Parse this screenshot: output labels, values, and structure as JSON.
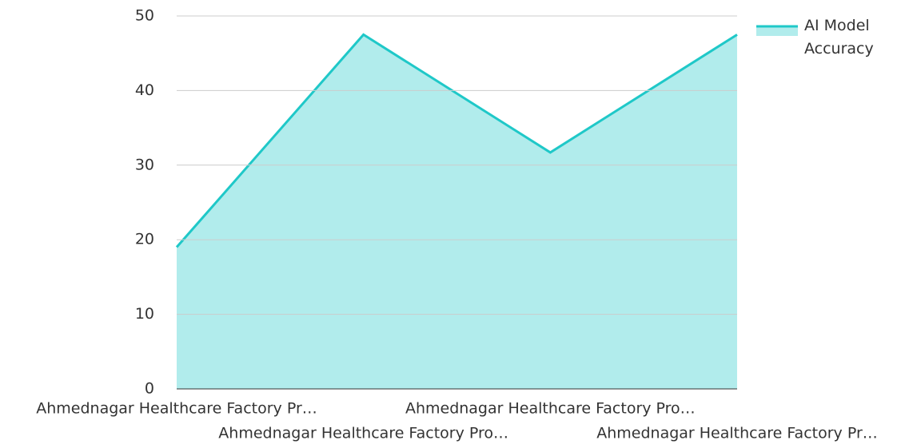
{
  "chart_data": {
    "type": "area",
    "categories": [
      "Ahmednagar Healthcare Factory Pr…",
      "Ahmednagar Healthcare Factory Pro…",
      "Ahmednagar Healthcare Factory Pro…",
      "Ahmednagar Healthcare Factory Pr…"
    ],
    "series": [
      {
        "name": "AI Model Accuracy",
        "color": "#1fc8c8",
        "values": [
          19,
          47.5,
          31.7,
          47.5
        ]
      }
    ],
    "ylim": [
      0,
      50
    ],
    "yticks": [
      0,
      10,
      20,
      30,
      40,
      50
    ],
    "grid": true,
    "legend": "top-right"
  }
}
